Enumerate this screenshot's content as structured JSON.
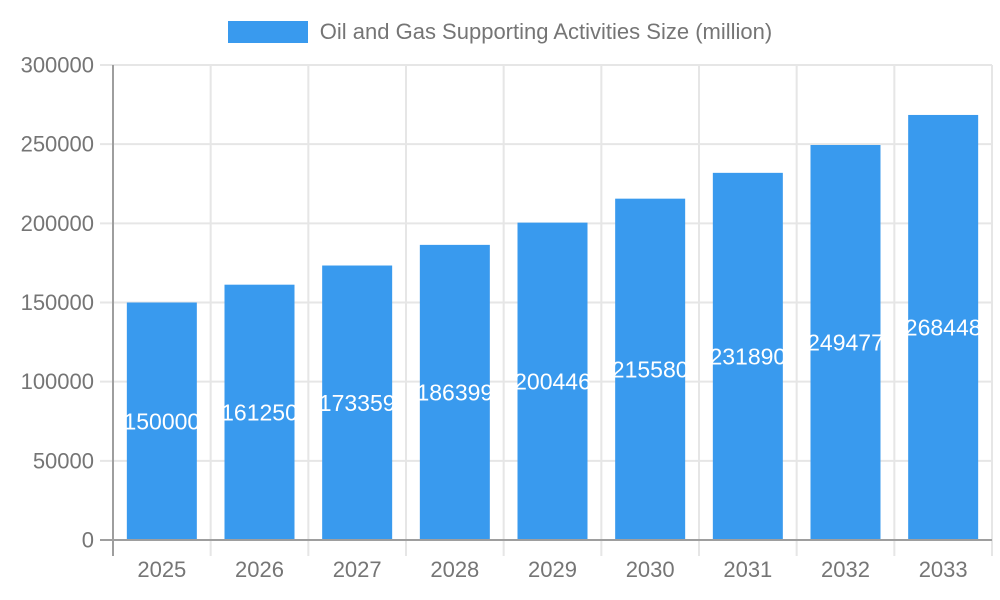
{
  "legend": {
    "label": "Oil and Gas Supporting Activities Size (million)"
  },
  "chart_data": {
    "type": "bar",
    "title": "Oil and Gas Supporting Activities Size (million)",
    "categories": [
      "2025",
      "2026",
      "2027",
      "2028",
      "2029",
      "2030",
      "2031",
      "2032",
      "2033"
    ],
    "values": [
      150000,
      161250,
      173359,
      186399,
      200446,
      215580,
      231890,
      249477,
      268448
    ],
    "xlabel": "",
    "ylabel": "",
    "ylim": [
      0,
      300000
    ],
    "yticks": [
      0,
      50000,
      100000,
      150000,
      200000,
      250000,
      300000
    ],
    "grid": true,
    "legend_position": "top-center",
    "value_labels": "inside-center",
    "colors": {
      "bar": "#399AEE",
      "axis": "#9e9e9e",
      "grid": "#e6e6e6",
      "tick_label": "#757575",
      "legend_label": "#757575",
      "value_label": "#ffffff",
      "background": "#ffffff"
    }
  }
}
